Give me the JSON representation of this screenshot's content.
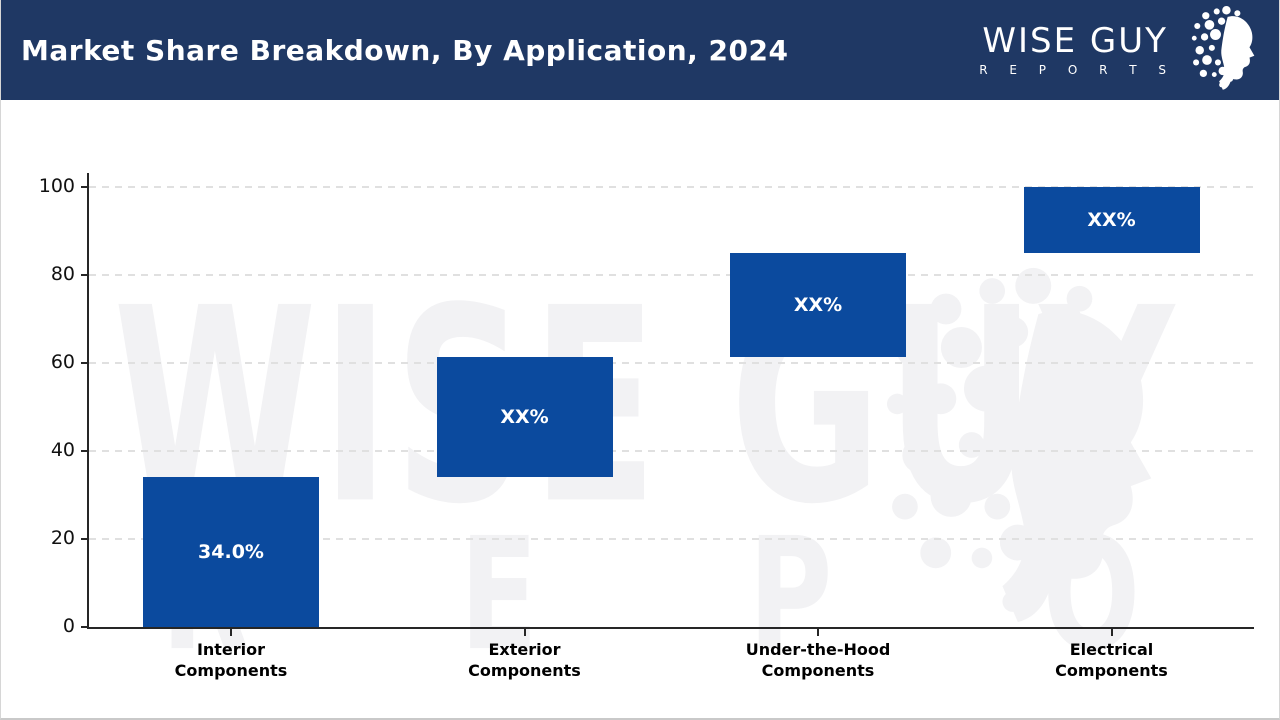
{
  "header": {
    "title": "Market Share Breakdown, By Application, 2024",
    "bg_color": "#1f3864",
    "logo": {
      "line1": "WISE GUY",
      "line2": "R E P O R T S",
      "icon": "dotted-head-profile"
    }
  },
  "watermark": {
    "line1": "WISE GUY",
    "line2": "R E P O R T S",
    "icon": "dotted-head-profile",
    "color": "#f2f2f4"
  },
  "chart_data": {
    "type": "bar",
    "subtype": "waterfall",
    "title": "Market Share Breakdown, By Application, 2024",
    "xlabel": "",
    "ylabel": "",
    "ylim": [
      0,
      103
    ],
    "yticks": [
      0,
      20,
      40,
      60,
      80,
      100
    ],
    "grid": "horizontal-dashed",
    "legend": "none",
    "bar_color": "#0b4a9e",
    "axis_color": "#262626",
    "grid_color": "#e0e0e0",
    "categories": [
      [
        "Interior",
        "Components"
      ],
      [
        "Exterior",
        "Components"
      ],
      [
        "Under-the-Hood",
        "Components"
      ],
      [
        "Electrical",
        "Components"
      ]
    ],
    "bars": [
      {
        "category": "Interior Components",
        "start": 0,
        "end": 34,
        "label": "34.0%"
      },
      {
        "category": "Exterior Components",
        "start": 34,
        "end": 61.4,
        "label": "XX%"
      },
      {
        "category": "Under-the-Hood Components",
        "start": 61.4,
        "end": 85,
        "label": "XX%"
      },
      {
        "category": "Electrical Components",
        "start": 85,
        "end": 100,
        "label": "XX%"
      }
    ]
  }
}
